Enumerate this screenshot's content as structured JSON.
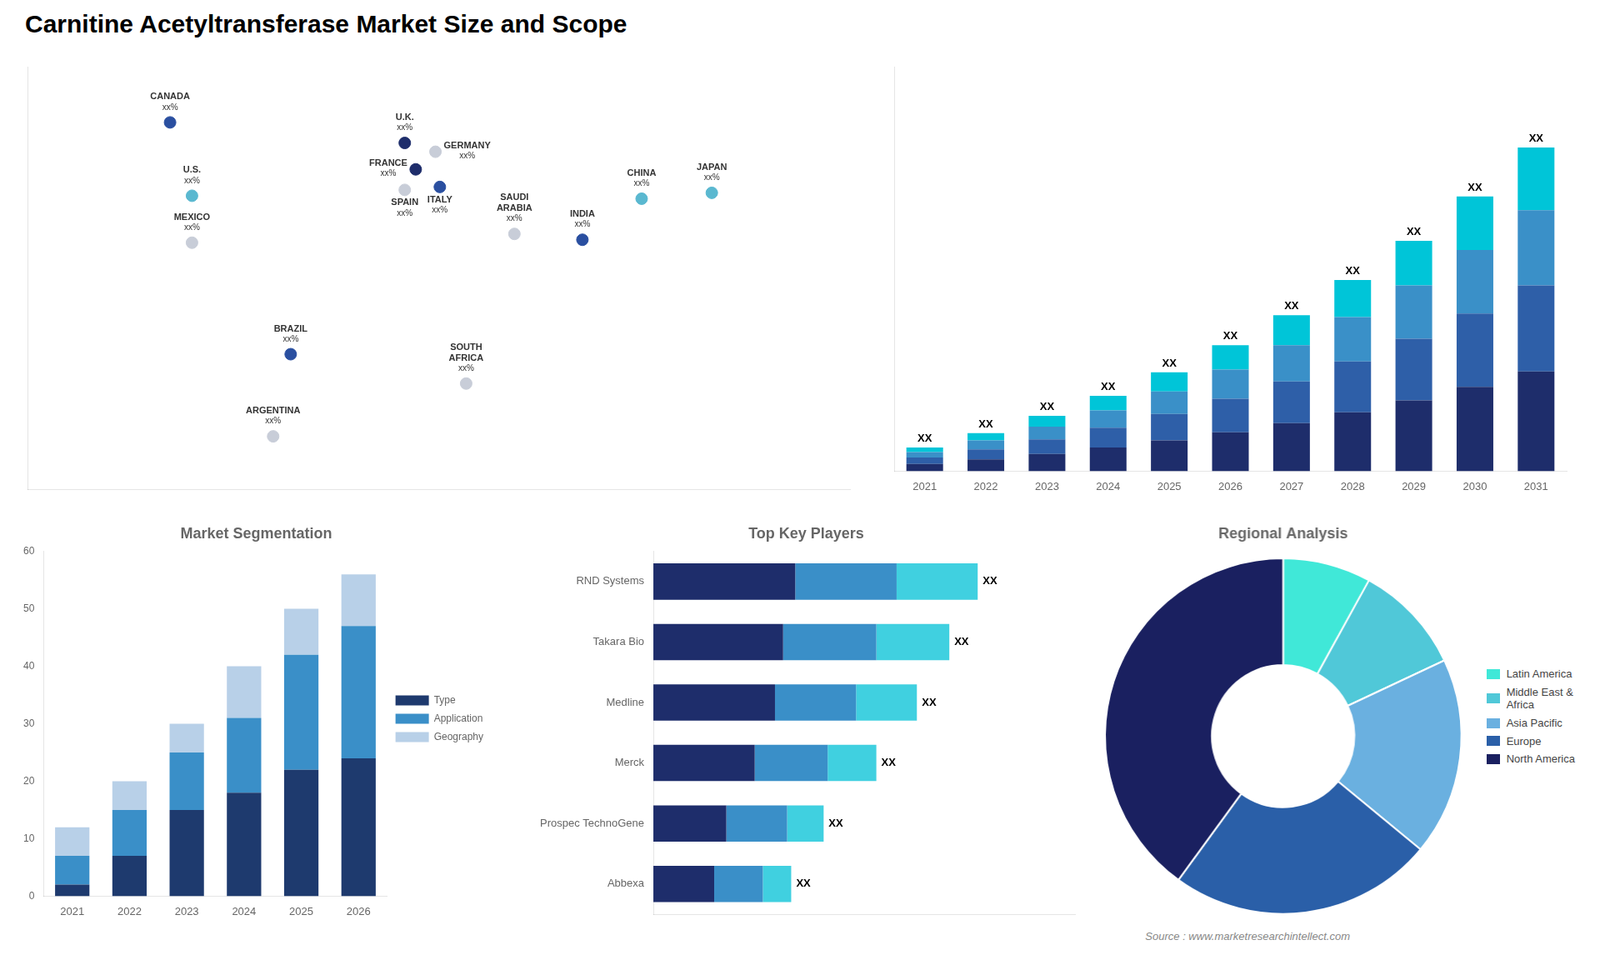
{
  "title": "Carnitine Acetyltransferase Market Size and Scope",
  "annotations": [
    "Source : www.marketresearchintellect.com"
  ],
  "chart_data": [
    {
      "type": "scatter",
      "x": [
        -110,
        -100,
        -100,
        -55,
        -63,
        -3,
        2,
        11,
        -3,
        13,
        47,
        25,
        105,
        78,
        137
      ],
      "values": [
        63,
        38,
        22,
        -16,
        -44,
        56,
        47,
        53,
        40,
        41,
        25,
        -26,
        37,
        23,
        39
      ],
      "categories": [
        "CANADA",
        "U.S.",
        "MEXICO",
        "BRAZIL",
        "ARGENTINA",
        "U.K.",
        "FRANCE",
        "GERMANY",
        "SPAIN",
        "ITALY",
        "SAUDI\nARABIA",
        "SOUTH\nAFRICA",
        "CHINA",
        "INDIA",
        "JAPAN"
      ],
      "value_labels": [
        "xx%",
        "xx%",
        "xx%",
        "xx%",
        "xx%",
        "xx%",
        "xx%",
        "xx%",
        "xx%",
        "xx%",
        "xx%",
        "xx%",
        "xx%",
        "xx%",
        "xx%"
      ],
      "colors": [
        "#2a4fa0",
        "#5ab8d0",
        "#c8cdd8",
        "#2a4fa0",
        "#c8cdd8",
        "#1e2d6b",
        "#1e2d6b",
        "#c8cdd8",
        "#c8cdd8",
        "#2a4fa0",
        "#c8cdd8",
        "#c8cdd8",
        "#5ab8d0",
        "#2a4fa0",
        "#5ab8d0"
      ],
      "xlim": [
        -175,
        200
      ],
      "ylim": [
        -62,
        82
      ],
      "grid": false,
      "tick_labels": false
    },
    {
      "type": "bar",
      "stacked": true,
      "categories": [
        "2021",
        "2022",
        "2023",
        "2024",
        "2025",
        "2026",
        "2027",
        "2028",
        "2029",
        "2030",
        "2031"
      ],
      "series": [
        {
          "color": "#1e2d6b",
          "values": [
            0.8,
            1.3,
            1.9,
            2.6,
            3.4,
            4.3,
            5.3,
            6.5,
            7.8,
            9.3,
            11.0
          ]
        },
        {
          "color": "#2e5fa8",
          "values": [
            0.7,
            1.1,
            1.6,
            2.2,
            2.9,
            3.7,
            4.6,
            5.6,
            6.8,
            8.1,
            9.5
          ]
        },
        {
          "color": "#3a90c8",
          "values": [
            0.6,
            1.0,
            1.4,
            1.9,
            2.5,
            3.2,
            4.0,
            4.9,
            5.9,
            7.0,
            8.3
          ]
        },
        {
          "color": "#00c5d8",
          "values": [
            0.5,
            0.8,
            1.2,
            1.6,
            2.1,
            2.7,
            3.3,
            4.1,
            4.9,
            5.9,
            6.9
          ],
          "value_labels": [
            "XX",
            "XX",
            "XX",
            "XX",
            "XX",
            "XX",
            "XX",
            "XX",
            "XX",
            "XX",
            "XX"
          ]
        }
      ],
      "ylim": [
        0,
        44.625
      ],
      "grid": false,
      "tick_labels": "x"
    },
    {
      "type": "bar",
      "title": "Market Segmentation",
      "stacked": true,
      "categories": [
        "2021",
        "2022",
        "2023",
        "2024",
        "2025",
        "2026"
      ],
      "series": [
        {
          "name": "Type",
          "color": "#1e3a6e",
          "values": [
            2,
            7,
            15,
            18,
            22,
            24
          ]
        },
        {
          "name": "Application",
          "color": "#3a8fc8",
          "values": [
            5,
            8,
            10,
            13,
            20,
            23
          ]
        },
        {
          "name": "Geography",
          "color": "#b8d0e8",
          "values": [
            5,
            5,
            5,
            9,
            8,
            9
          ]
        }
      ],
      "ylim": [
        0,
        60
      ],
      "yticks": [
        0,
        10,
        20,
        30,
        40,
        50,
        60
      ],
      "grid": false,
      "legend": "right"
    },
    {
      "type": "bar",
      "orientation": "horizontal",
      "title": "Top Key Players",
      "stacked": true,
      "categories": [
        "RND Systems",
        "Takara Bio",
        "Medline",
        "Merck",
        "Prospec TechnoGene",
        "Abbexa"
      ],
      "series": [
        {
          "color": "#1e2d6b",
          "values": [
            3.5,
            3.2,
            3.0,
            2.5,
            1.8,
            1.5
          ]
        },
        {
          "color": "#3a8fc8",
          "values": [
            2.5,
            2.3,
            2.0,
            1.8,
            1.5,
            1.2
          ]
        },
        {
          "color": "#40d0e0",
          "values": [
            2.0,
            1.8,
            1.5,
            1.2,
            0.9,
            0.7
          ],
          "value_labels": [
            "XX",
            "XX",
            "XX",
            "XX",
            "XX",
            "XX"
          ]
        }
      ],
      "xlim": [
        0,
        10.4
      ],
      "grid": false,
      "tick_labels": "y"
    },
    {
      "type": "doughnut",
      "title": "Regional Analysis",
      "categories": [
        "Latin America",
        "Middle East &\nAfrica",
        "Asia Pacific",
        "Europe",
        "North America"
      ],
      "values": [
        8,
        10,
        18,
        24,
        40
      ],
      "colors": [
        "#40e8d8",
        "#50c8d8",
        "#6ab0e0",
        "#2a5fa8",
        "#1a2060"
      ],
      "legend": "right"
    }
  ]
}
